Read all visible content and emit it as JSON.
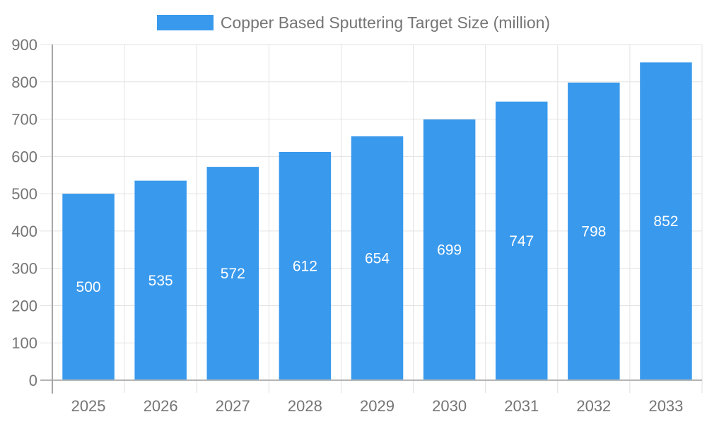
{
  "legend": {
    "series_label": "Copper Based Sputtering Target Size (million)"
  },
  "chart_data": {
    "type": "bar",
    "title": "Copper Based Sputtering Target Size (million)",
    "categories": [
      "2025",
      "2026",
      "2027",
      "2028",
      "2029",
      "2030",
      "2031",
      "2032",
      "2033"
    ],
    "values": [
      500,
      535,
      572,
      612,
      654,
      699,
      747,
      798,
      852
    ],
    "bar_labels": [
      "500",
      "535",
      "572",
      "612",
      "654",
      "699",
      "747",
      "798",
      "852"
    ],
    "xlabel": "",
    "ylabel": "",
    "ylim": [
      0,
      900
    ],
    "yticks": [
      0,
      100,
      200,
      300,
      400,
      500,
      600,
      700,
      800,
      900
    ],
    "grid": true,
    "legend_position": "top-center",
    "colors": {
      "bar": "#3999ED",
      "bar_label_text": "#FFFFFF",
      "axis_text": "#757575",
      "gridline": "#E3E3E3",
      "below_tick": "#DEDEDE",
      "y_axis_line": "#A6A6A6",
      "x_axis_line": "#B5B5B5",
      "background": "#FFFFFF"
    }
  }
}
